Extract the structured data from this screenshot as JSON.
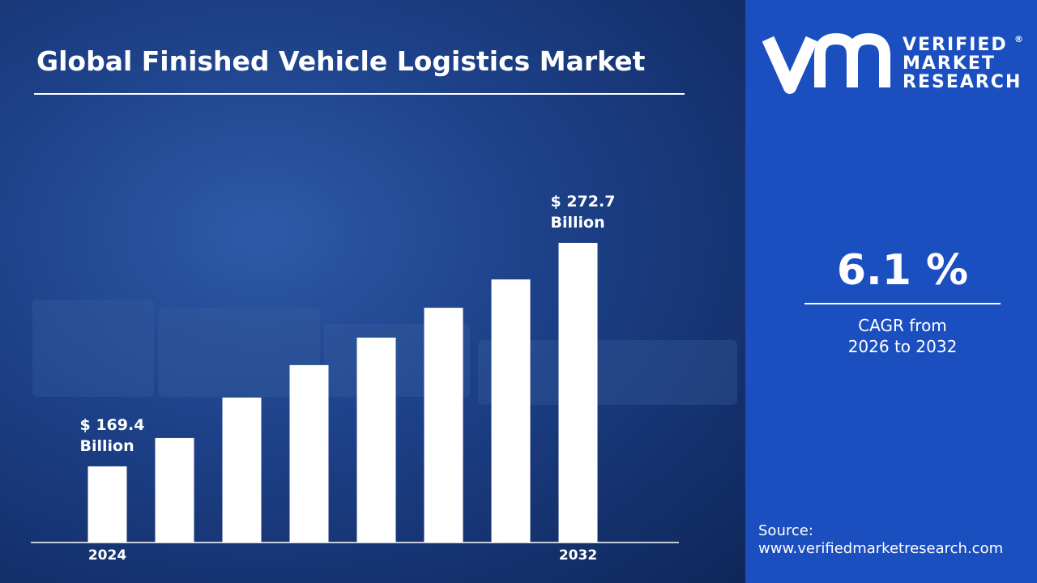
{
  "chart_data": {
    "type": "bar",
    "title": "Global Finished Vehicle Logistics Market",
    "categories": [
      "2024",
      null,
      null,
      null,
      null,
      null,
      null,
      "2032"
    ],
    "values": [
      169.4,
      182.5,
      201.2,
      216.2,
      228.9,
      242.7,
      255.8,
      272.7
    ],
    "value_labels": [
      "$ 169.4 Billion",
      null,
      null,
      null,
      null,
      null,
      null,
      "$ 272.7 Billion"
    ],
    "color": "#ffffff",
    "ylim": [
      134.2,
      300
    ]
  },
  "logo": {
    "words": [
      "VERIFIED",
      "MARKET",
      "RESEARCH"
    ],
    "mark": "®"
  },
  "cagr": {
    "value": "6.1 %",
    "label": [
      "CAGR from",
      "2026 to 2032"
    ]
  },
  "source": {
    "label": "Source:",
    "url": "www.verifiedmarketresearch.com"
  }
}
